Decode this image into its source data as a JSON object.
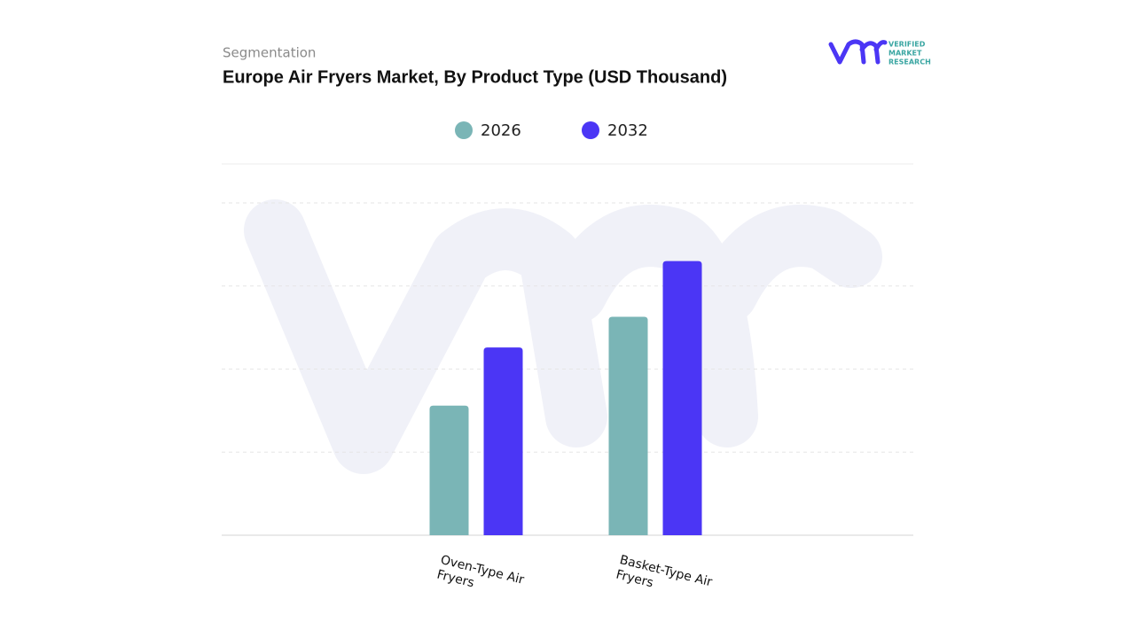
{
  "logo": [
    "VERIFIED",
    "MARKET",
    "RESEARCH"
  ],
  "chart_data": {
    "type": "bar",
    "subtitle": "Segmentation",
    "title": "Europe Air Fryers Market, By Product Type (USD Thousand)",
    "categories": [
      "Oven-Type Air Fryers",
      "Basket-Type Air Fryers"
    ],
    "series": [
      {
        "name": "2026",
        "color": "#7ab5b6",
        "values": [
          1.56,
          2.63
        ]
      },
      {
        "name": "2032",
        "color": "#4b36f5",
        "values": [
          2.26,
          3.3
        ]
      }
    ],
    "ylim": [
      0,
      4.47
    ],
    "yticks": [
      0,
      1,
      2,
      3,
      4
    ],
    "grid": true,
    "legend": "top"
  }
}
